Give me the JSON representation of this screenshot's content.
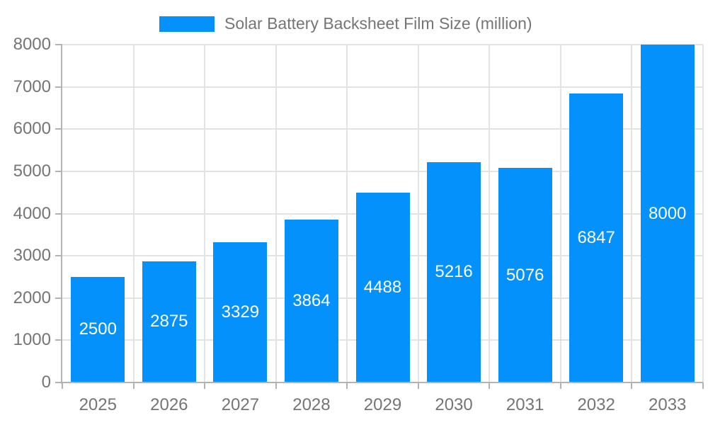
{
  "legend": {
    "label": "Solar Battery Backsheet Film Size (million)"
  },
  "chart_data": {
    "type": "bar",
    "title": "Solar Battery Backsheet Film Size (million)",
    "categories": [
      "2025",
      "2026",
      "2027",
      "2028",
      "2029",
      "2030",
      "2031",
      "2032",
      "2033"
    ],
    "values": [
      2500,
      2875,
      3329,
      3864,
      4488,
      5216,
      5076,
      6847,
      8000
    ],
    "xlabel": "",
    "ylabel": "",
    "ylim": [
      0,
      8000
    ],
    "yticks": [
      0,
      1000,
      2000,
      3000,
      4000,
      5000,
      6000,
      7000,
      8000
    ],
    "grid": true,
    "legend_position": "top",
    "colors": {
      "bar": "#0591fb",
      "value_label": "#ffffff",
      "axis_text": "#757575",
      "grid_line": "#e3e3e3",
      "axis_line": "#b3b3b3"
    }
  }
}
